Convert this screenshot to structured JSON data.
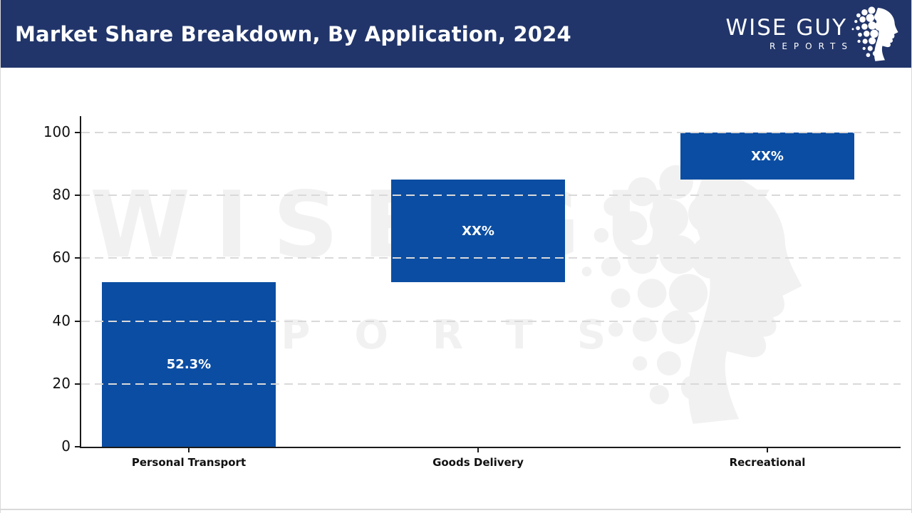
{
  "header": {
    "title": "Market Share Breakdown, By Application, 2024",
    "bg_color": "#21356a",
    "brand": {
      "line1": "WISE GUY",
      "line2": "REPORTS"
    }
  },
  "watermark": {
    "line1": "WISE GUY",
    "line2": "REPORTS"
  },
  "chart_data": {
    "type": "bar",
    "variant": "stacked-waterfall",
    "title": "Market Share Breakdown, By Application, 2024",
    "categories": [
      "Personal Transport",
      "Goods Delivery",
      "Recreational"
    ],
    "segments": [
      {
        "category": "Personal Transport",
        "label": "52.3%",
        "start": 0,
        "end": 52.3,
        "value": 52.3
      },
      {
        "category": "Goods Delivery",
        "label": "XX%",
        "start": 52.3,
        "end": 85,
        "value_estimate": 32.7
      },
      {
        "category": "Recreational",
        "label": "XX%",
        "start": 85,
        "end": 100,
        "value_estimate": 15
      }
    ],
    "yticks": [
      0,
      20,
      40,
      60,
      80,
      100
    ],
    "ylim": [
      0,
      105
    ],
    "xlabel": "",
    "ylabel": "",
    "grid": "horizontal-dashed",
    "legend": "none",
    "bar_color": "#0b4da2",
    "bar_label_color": "#ffffff",
    "gridline_color": "#d9d9d9",
    "axis_color": "#1a1a1a"
  }
}
